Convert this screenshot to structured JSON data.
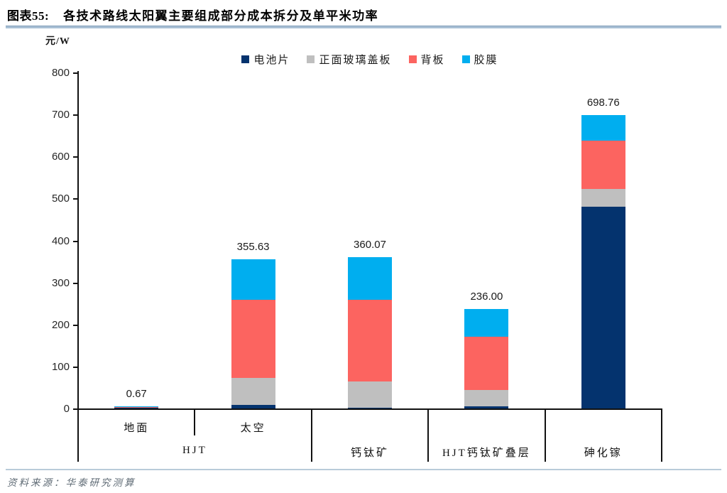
{
  "header": {
    "figure_label": "图表55:",
    "title": "各技术路线太阳翼主要组成部分成本拆分及单平米功率"
  },
  "unit_label": "元/W",
  "footer": {
    "source": "资料来源：华泰研究测算"
  },
  "chart_data": {
    "type": "bar",
    "stacked": true,
    "title": "各技术路线太阳翼主要组成部分成本拆分及单平米功率",
    "ylabel": "元/W",
    "ylim": [
      0,
      800
    ],
    "ytick_step": 100,
    "grid": false,
    "legend_position": "top-center",
    "categories": [
      "地面",
      "太空",
      "钙钛矿",
      "HJT钙钛矿叠层",
      "砷化镓"
    ],
    "series": [
      {
        "name": "电池片",
        "color": "#04336E",
        "values": [
          0.1,
          9.0,
          2.0,
          5.0,
          480.0
        ]
      },
      {
        "name": "正面玻璃盖板",
        "color": "#BFBFBF",
        "values": [
          0.2,
          64.0,
          62.0,
          39.0,
          43.0
        ]
      },
      {
        "name": "背板",
        "color": "#FC6460",
        "values": [
          0.25,
          186.0,
          195.0,
          127.0,
          115.0
        ]
      },
      {
        "name": "胶膜",
        "color": "#00AEEF",
        "values": [
          0.12,
          96.63,
          101.07,
          65.0,
          60.76
        ]
      }
    ],
    "totals": [
      0.67,
      355.63,
      360.07,
      236.0,
      698.76
    ],
    "total_labels": [
      "0.67",
      "355.63",
      "360.07",
      "236.00",
      "698.76"
    ],
    "x_axis": {
      "level1_labels": [
        {
          "label": "地面",
          "from": 0,
          "to": 1
        },
        {
          "label": "太空",
          "from": 1,
          "to": 2
        }
      ],
      "level2_labels": [
        {
          "label": "HJT",
          "from": 0,
          "to": 2
        },
        {
          "label": "钙钛矿",
          "from": 2,
          "to": 3
        },
        {
          "label": "HJT钙钛矿叠层",
          "from": 3,
          "to": 4
        },
        {
          "label": "砷化镓",
          "from": 4,
          "to": 5
        }
      ],
      "separators_long": [
        0,
        2,
        3,
        4,
        5
      ],
      "separators_short": [
        1
      ]
    }
  }
}
